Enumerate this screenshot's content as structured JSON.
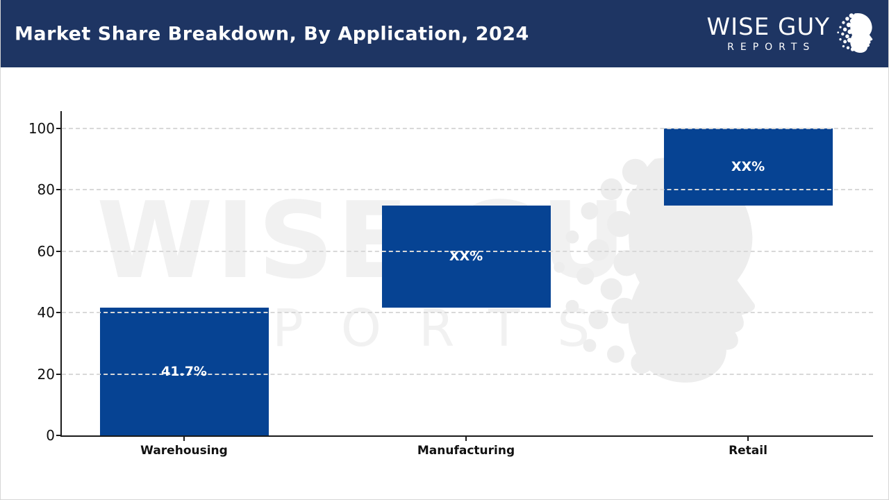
{
  "header": {
    "title": "Market Share Breakdown, By Application, 2024",
    "bg_color": "#1e3563"
  },
  "logo": {
    "line1": "WISE GUY",
    "line2": "REPORTS"
  },
  "chart_data": {
    "type": "bar",
    "subtype": "waterfall",
    "title": "Market Share Breakdown, By Application, 2024",
    "categories": [
      "Warehousing",
      "Manufacturing",
      "Retail"
    ],
    "series": [
      {
        "name": "Market Share (%)",
        "segments": [
          {
            "category": "Warehousing",
            "start": 0,
            "end": 41.7,
            "value": 41.7,
            "label": "41.7%"
          },
          {
            "category": "Manufacturing",
            "start": 41.7,
            "end": 75,
            "value": 33.3,
            "label": "XX%"
          },
          {
            "category": "Retail",
            "start": 75,
            "end": 100,
            "value": 25,
            "label": "XX%"
          }
        ]
      }
    ],
    "xlabel": "",
    "ylabel": "",
    "ylim": [
      0,
      100
    ],
    "yticks": [
      0,
      20,
      40,
      60,
      80,
      100
    ],
    "grid": "horizontal-dashed",
    "legend": "none",
    "bar_color": "#064393",
    "bar_label_color": "#ffffff",
    "gridline_color": "#d8d8d8",
    "axis_color": "#1a1a1a"
  }
}
